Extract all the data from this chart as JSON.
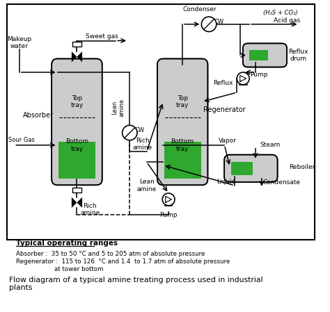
{
  "title": "Flow diagram of a typical amine treating process used in industrial\nplants",
  "background_color": "#ffffff",
  "border_color": "#000000",
  "vessel_fill_gray": "#cccccc",
  "vessel_fill_green": "#2ea82e",
  "text_color": "#000000",
  "typical_header": "Typical operating ranges",
  "typical_line1": "Absorber :  35 to 50 °C and 5 to 205 atm of absolute pressure",
  "typical_line2": "Regenerator :  115 to 126  °C and 1.4  to 1.7 atm of absolute pressure",
  "typical_line3": "                    at tower bottom",
  "labels": {
    "sweet_gas": "Sweet gas",
    "makeup_water": "Makeup\nwater",
    "absorber": "Absorber",
    "sour_gas": "Sour Gas",
    "top_tray1": "Top\ntray",
    "bottom_tray1": "Bottom\ntray",
    "rich_amine1": "Rich\namine",
    "lean_amine": "Lean\namine",
    "cw1": "CW",
    "rich_amine2": "Rich\namine",
    "condenser": "Condenser",
    "cw2": "CW",
    "acid_gas_top": "(H₂S + CO₂)",
    "acid_gas_bot": "Acid gas",
    "reflux_drum": "Reflux\ndrum",
    "pump1": "Pump",
    "reflux": "Reflux",
    "top_tray2": "Top\ntray",
    "bottom_tray2": "Bottom\ntray",
    "regenerator": "Regenerator",
    "vapor": "Vapor",
    "steam": "Steam",
    "reboiler": "Reboiler",
    "liquid": "Liquid",
    "condensate": "Condensate",
    "lean_amine2": "Lean\namine",
    "pump2": "Pump"
  }
}
